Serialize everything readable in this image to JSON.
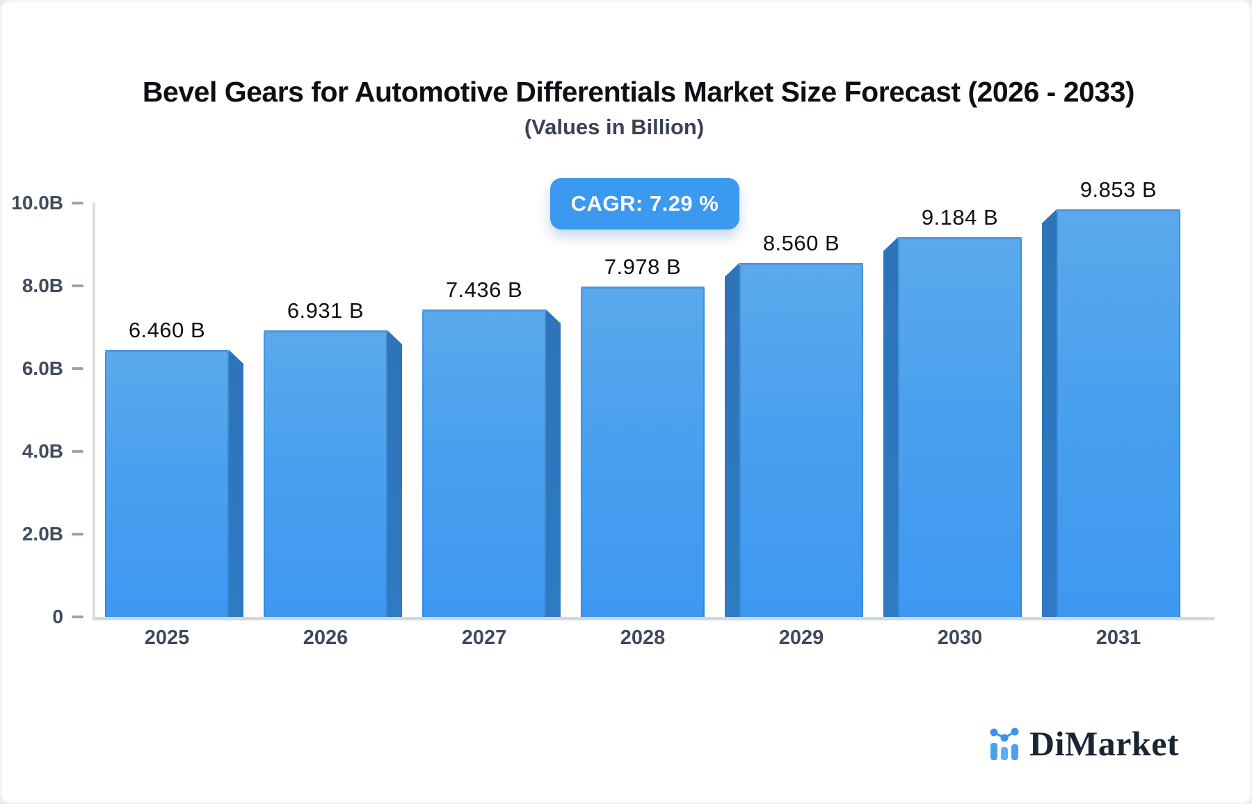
{
  "header": {
    "title": "Bevel Gears for Automotive Differentials Market Size Forecast (2026 - 2033)",
    "subtitle": "(Values in Billion)"
  },
  "badge": {
    "label": "CAGR: 7.29 %"
  },
  "chart_data": {
    "type": "bar",
    "title": "Bevel Gears for Automotive Differentials Market Size Forecast (2026 - 2033)",
    "subtitle": "(Values in Billion)",
    "categories": [
      "2025",
      "2026",
      "2027",
      "2028",
      "2029",
      "2030",
      "2031"
    ],
    "values": [
      6.46,
      6.931,
      7.436,
      7.978,
      8.56,
      9.184,
      9.853
    ],
    "value_labels": [
      "6.460 B",
      "6.931 B",
      "7.436 B",
      "7.978 B",
      "8.560 B",
      "9.184 B",
      "9.853 B"
    ],
    "y_ticks": [
      "10.0B",
      "8.0B",
      "6.0B",
      "4.0B",
      "2.0B",
      "0"
    ],
    "y_tick_values": [
      10,
      8,
      6,
      4,
      2,
      0
    ],
    "ylim": [
      0,
      10
    ],
    "xlabel": "",
    "ylabel": "",
    "grid": false,
    "legend": false,
    "cagr_percent": 7.29,
    "bar_style": "3d-beveled",
    "colors": {
      "bar_face_top": "#5ba9ec",
      "bar_face_bottom": "#3e98f2",
      "bar_side": "#2f79c1",
      "badge_background": "#3b99f0",
      "badge_text": "#ffffff",
      "axis_line": "#d8dce1",
      "tick_dash": "#9aa3af",
      "axis_label_text": "#414c5c",
      "value_label_text": "#0c1014",
      "title_text": "#0c0f14"
    }
  },
  "logo": {
    "icon": "mini-bar-line-chart-icon",
    "text": "DiMarket",
    "color": "#4aa1f2",
    "text_color": "#1b2433"
  }
}
